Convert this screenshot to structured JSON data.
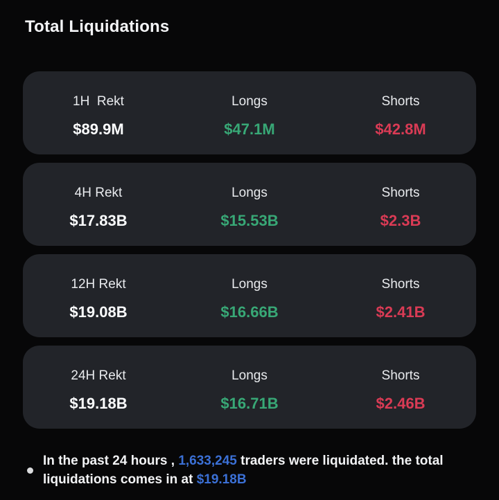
{
  "header": {
    "title": "Total Liquidations"
  },
  "colors": {
    "page_bg": "#070708",
    "card_bg": "#222429",
    "title": "#f4f5f7",
    "label": "#e9ebee",
    "value_white": "#fcfdfe",
    "green": "#38a876",
    "red": "#da3b55",
    "blue": "#3b70d6",
    "bullet": "#dbdcde"
  },
  "cards": [
    {
      "rekt": {
        "label": "1H  Rekt",
        "value": "$89.9M"
      },
      "longs": {
        "label": "Longs",
        "value": "$47.1M"
      },
      "shorts": {
        "label": "Shorts",
        "value": "$42.8M"
      }
    },
    {
      "rekt": {
        "label": "4H Rekt",
        "value": "$17.83B"
      },
      "longs": {
        "label": "Longs",
        "value": "$15.53B"
      },
      "shorts": {
        "label": "Shorts",
        "value": "$2.3B"
      }
    },
    {
      "rekt": {
        "label": "12H Rekt",
        "value": "$19.08B"
      },
      "longs": {
        "label": "Longs",
        "value": "$16.66B"
      },
      "shorts": {
        "label": "Shorts",
        "value": "$2.41B"
      }
    },
    {
      "rekt": {
        "label": "24H Rekt",
        "value": "$19.18B"
      },
      "longs": {
        "label": "Longs",
        "value": "$16.71B"
      },
      "shorts": {
        "label": "Shorts",
        "value": "$2.46B"
      }
    }
  ],
  "footer": {
    "bullet_icon": "dot",
    "part1": "In the past 24 hours , ",
    "traders_count": "1,633,245",
    "part2": " traders were liquidated. the total",
    "part3": "liquidations comes in at ",
    "total_amount": "$19.18B"
  }
}
